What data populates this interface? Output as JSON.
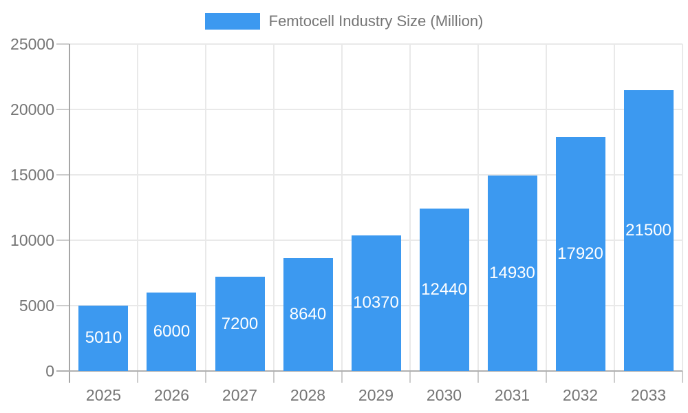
{
  "legend": {
    "label": "Femtocell Industry Size (Million)"
  },
  "colors": {
    "bar": "#3C99F0",
    "value_label": "#FFFFFF",
    "axis_text": "#757575",
    "gridline": "#E9E9E9"
  },
  "chart_data": {
    "type": "bar",
    "title": "Femtocell Industry Size (Million)",
    "categories": [
      "2025",
      "2026",
      "2027",
      "2028",
      "2029",
      "2030",
      "2031",
      "2032",
      "2033"
    ],
    "series": [
      {
        "name": "Femtocell Industry Size (Million)",
        "values": [
          5010,
          6000,
          7200,
          8640,
          10370,
          12440,
          14930,
          17920,
          21500
        ]
      }
    ],
    "value_labels_shown": true,
    "xlabel": "",
    "ylabel": "",
    "ylim": [
      0,
      25000
    ],
    "yticks": [
      0,
      5000,
      10000,
      15000,
      20000,
      25000
    ],
    "grid": true,
    "legend_position": "top-center",
    "bar_color": "#3C99F0"
  }
}
